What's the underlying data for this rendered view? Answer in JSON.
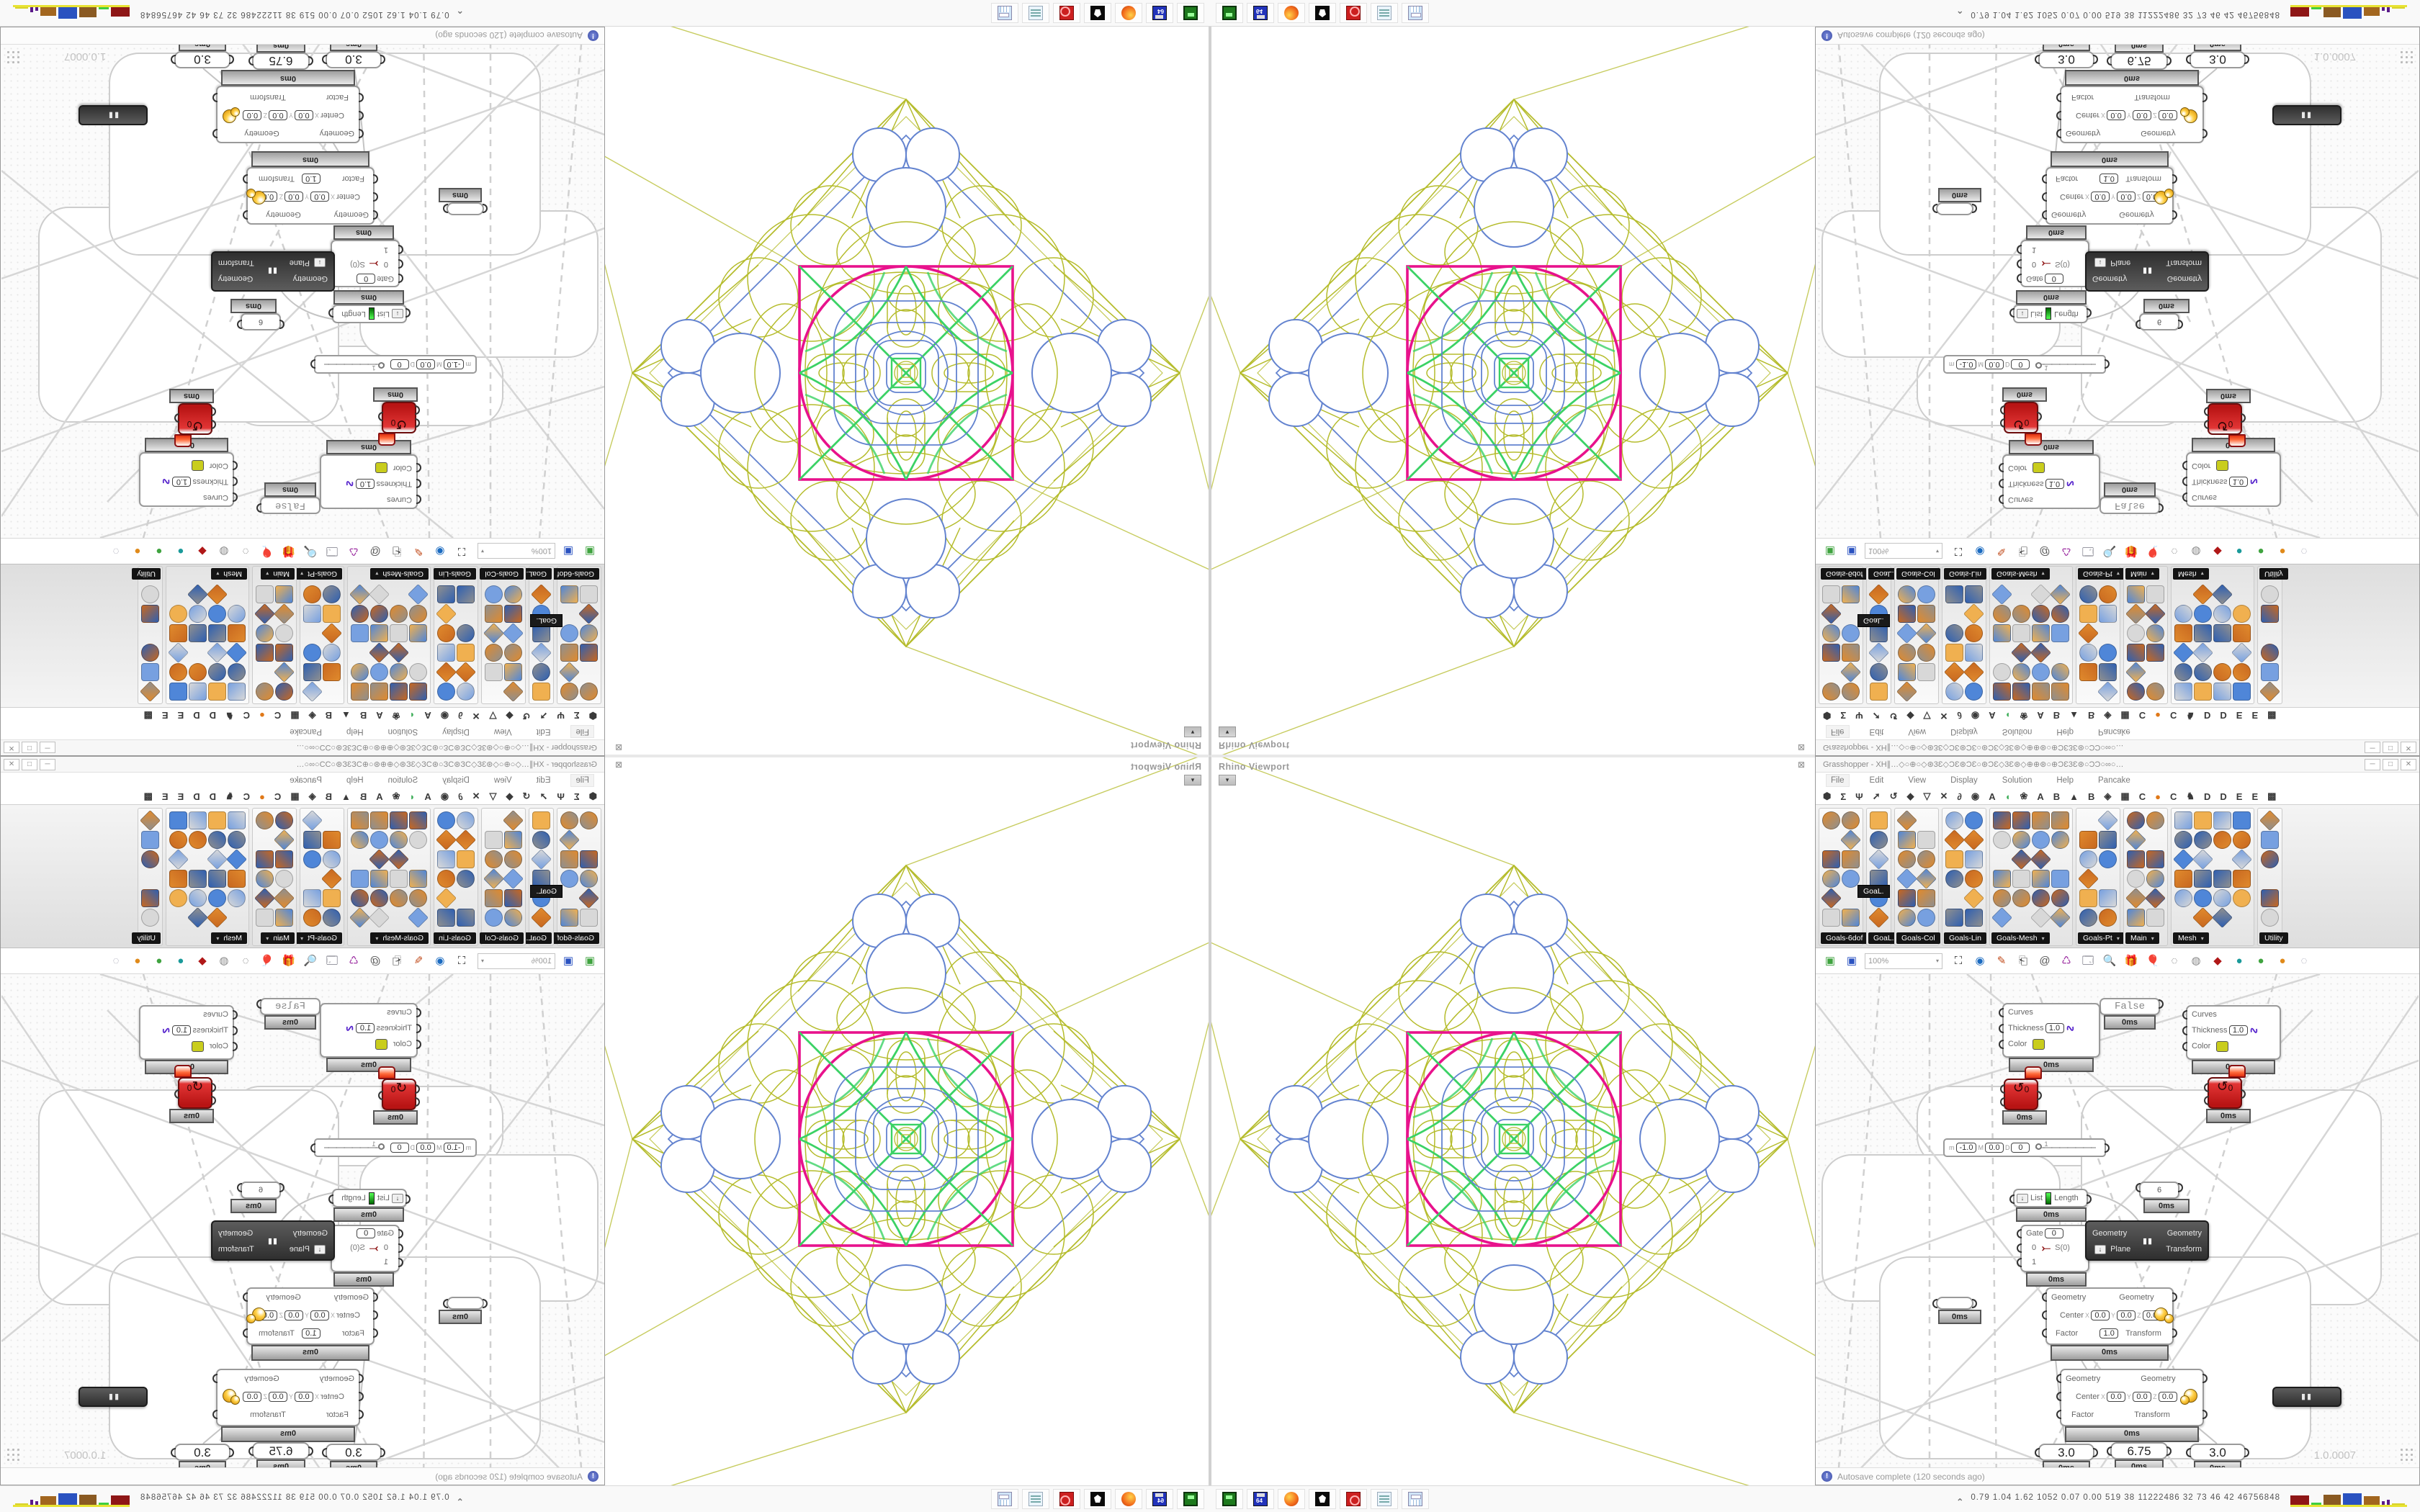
{
  "viewport": {
    "title": "Rhino Viewport",
    "dropdown_glyph": "▾",
    "close_glyph": "⊠"
  },
  "gh": {
    "title": "Grasshopper - XH∥…◇○⊕○◇⊛3Ɛ◇ƆƐ⊛ƆƐ○⊛ƆƐ◇3Ɛ⊛◇⊕⊕⊛○⊕ƆƐ3Ɛ⊛○ƆƆ○∞○…",
    "window_buttons": {
      "minimize": "─",
      "maximize": "□",
      "close": "✕"
    },
    "menus": [
      "File",
      "Edit",
      "View",
      "Display",
      "Solution",
      "Help",
      "Pancake"
    ],
    "tab_icons": [
      {
        "name": "params",
        "glyph": "⬢"
      },
      {
        "name": "maths",
        "glyph": "Σ"
      },
      {
        "name": "sets",
        "glyph": "Ψ"
      },
      {
        "name": "vector",
        "glyph": "➚"
      },
      {
        "name": "curve",
        "glyph": "↺"
      },
      {
        "name": "surface",
        "glyph": "◆"
      },
      {
        "name": "mesh",
        "glyph": "▽"
      },
      {
        "name": "intersect",
        "glyph": "✕"
      },
      {
        "name": "transform",
        "glyph": "∂"
      },
      {
        "name": "display",
        "glyph": "◉"
      },
      {
        "name": "plugin-a1",
        "glyph": "A"
      },
      {
        "name": "plugin-leaf",
        "glyph": "◖"
      },
      {
        "name": "plugin-flower",
        "glyph": "❀"
      },
      {
        "name": "plugin-a2",
        "glyph": "A"
      },
      {
        "name": "plugin-b1",
        "glyph": "B"
      },
      {
        "name": "plugin-mountain",
        "glyph": "▲"
      },
      {
        "name": "plugin-b2",
        "glyph": "B"
      },
      {
        "name": "plugin-shield",
        "glyph": "◈"
      },
      {
        "name": "plugin-grid",
        "glyph": "▦"
      },
      {
        "name": "plugin-c1",
        "glyph": "C"
      },
      {
        "name": "plugin-dot",
        "glyph": "●"
      },
      {
        "name": "plugin-c2",
        "glyph": "C"
      },
      {
        "name": "plugin-bird",
        "glyph": "♞"
      },
      {
        "name": "plugin-d1",
        "glyph": "D"
      },
      {
        "name": "plugin-d2",
        "glyph": "D"
      },
      {
        "name": "plugin-e1",
        "glyph": "E"
      },
      {
        "name": "plugin-e2",
        "glyph": "E"
      },
      {
        "name": "plugin-dots",
        "glyph": "▩"
      }
    ],
    "ribbon_groups": [
      {
        "label": "Goals-6dof",
        "dropdown": "",
        "cols": "2"
      },
      {
        "label": "GoaL.",
        "dropdown": "",
        "cols": "1"
      },
      {
        "label": "Goals-Col",
        "dropdown": "",
        "cols": "2"
      },
      {
        "label": "Goals-Lin",
        "dropdown": "",
        "cols": "2"
      },
      {
        "label": "Goals-Mesh",
        "dropdown": "▾",
        "cols": "4"
      },
      {
        "label": "Goals-Pt",
        "dropdown": "▾",
        "cols": "2"
      },
      {
        "label": "Main",
        "dropdown": "▾",
        "cols": "2"
      },
      {
        "label": "Mesh",
        "dropdown": "▾",
        "cols": "4"
      },
      {
        "label": "Utility",
        "dropdown": "",
        "cols": "1"
      }
    ],
    "tooltip": "GoaL.",
    "toolbar": {
      "zoom": "100%",
      "zoom_arrow": "▾",
      "icons": [
        {
          "name": "open-file-icon",
          "glyph": "📂",
          "color": "#3fa33f"
        },
        {
          "name": "save-file-icon",
          "glyph": "🖫",
          "color": "#2a52c0"
        },
        {
          "name": "zoom-extents-icon",
          "glyph": "⛶",
          "color": "#222"
        },
        {
          "name": "preview-eye-icon",
          "glyph": "◉",
          "color": "#1a6ac0"
        },
        {
          "name": "sketch-icon",
          "glyph": "✎",
          "color": "#c04a1a"
        },
        {
          "name": "exit-icon",
          "glyph": "⎗",
          "color": "#444"
        },
        {
          "name": "at-icon",
          "glyph": "@",
          "color": "#555"
        },
        {
          "name": "gha-icon",
          "glyph": "♺",
          "color": "#9a2aa0"
        },
        {
          "name": "window-icon",
          "glyph": "🗔",
          "color": "#334"
        },
        {
          "name": "find-icon",
          "glyph": "🔍",
          "color": "#2255aa"
        },
        {
          "name": "help-box-icon",
          "glyph": "🎁",
          "color": "#d05a9a"
        },
        {
          "name": "cluster-icon",
          "glyph": "🎈",
          "color": "#b05ad0"
        },
        {
          "name": "wireframe-icon",
          "glyph": "◌",
          "color": "#666"
        },
        {
          "name": "shaded-icon",
          "glyph": "◍",
          "color": "#888"
        },
        {
          "name": "gem-icon",
          "glyph": "◆",
          "color": "#b01818"
        },
        {
          "name": "ball-teal-icon",
          "glyph": "●",
          "color": "#1a9a9a"
        },
        {
          "name": "ball-green-icon",
          "glyph": "●",
          "color": "#3fa33f"
        },
        {
          "name": "ball-orange-icon",
          "glyph": "●",
          "color": "#e08a1a"
        },
        {
          "name": "selection-icon",
          "glyph": "◌",
          "color": "#99a"
        }
      ]
    },
    "canvas": {
      "ms": "0ms",
      "version": "1.0.0007",
      "bool_toggle": {
        "value": "False"
      },
      "preview": {
        "port_curves": "Curves",
        "port_thickness": "Thickness",
        "thickness_value": "1.0",
        "port_color": "Color"
      },
      "script_error": {
        "glyph": "↺",
        "out": "0"
      },
      "slider_settings": {
        "m_label": "m",
        "min": "-1.0",
        "max_label": "M",
        "max": "0.0",
        "d_label": "D",
        "digits": "0",
        "value": "1"
      },
      "value_panel": "6",
      "list_length": {
        "in": "List",
        "out": "Length"
      },
      "stream_filter": {
        "gate_label": "Gate",
        "gate_value": "0",
        "in0": "0",
        "in1": "1",
        "out": "S(0)"
      },
      "orient": {
        "in_geometry": "Geometry",
        "in_plane": "Plane",
        "pause_glyph": "▮▮",
        "out_geometry": "Geometry",
        "out_transform": "Transform",
        "graft_glyph": "↓"
      },
      "scale": {
        "in_geometry": "Geometry",
        "in_center": "Center",
        "x_label": "X",
        "x": "0.0",
        "y_label": "Y",
        "y": "0.0",
        "z_label": "Z",
        "z": "0.0",
        "in_factor": "Factor",
        "factor_value": "1.0",
        "out_geometry": "Geometry",
        "out_transform": "Transform"
      },
      "sliders": {
        "s1": "3.0",
        "s2": "6.75",
        "s3": "3.0"
      }
    },
    "status": {
      "icon_glyph": "!",
      "text": "Autosave complete (120 seconds ago)"
    }
  },
  "taskbar": {
    "icons": [
      {
        "name": "taskbar-console-icon"
      },
      {
        "name": "taskbar-floppy64-icon"
      },
      {
        "name": "taskbar-firefox-icon"
      },
      {
        "name": "taskbar-cat-icon"
      },
      {
        "name": "taskbar-red-app-icon"
      },
      {
        "name": "taskbar-notepad-icon"
      },
      {
        "name": "taskbar-calculator-icon"
      }
    ],
    "stats": {
      "chevron": "⌃",
      "values": "0.79 1.04 1.62 1052 0.07 0.00  519   38   11222486  32    73    46    42  46756848"
    }
  },
  "colors": {
    "magenta": "#e8128c",
    "green": "#3bd265",
    "olive": "#b5bc2c",
    "blue": "#6383cf",
    "error_red": "#b81414",
    "dark_component": "#3a3a3a"
  }
}
